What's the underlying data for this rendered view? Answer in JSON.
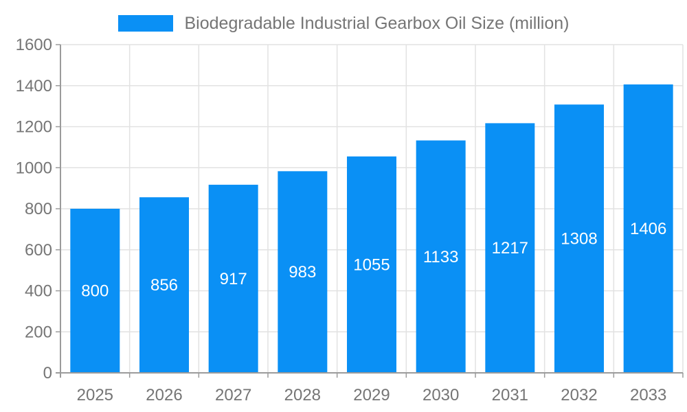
{
  "legend": {
    "swatch_color": "#0A90F5",
    "label": "Biodegradable Industrial Gearbox Oil Size (million)"
  },
  "chart_data": {
    "type": "bar",
    "title": "Biodegradable Industrial Gearbox Oil Size (million)",
    "categories": [
      "2025",
      "2026",
      "2027",
      "2028",
      "2029",
      "2030",
      "2031",
      "2032",
      "2033"
    ],
    "values": [
      800,
      856,
      917,
      983,
      1055,
      1133,
      1217,
      1308,
      1406
    ],
    "xlabel": "",
    "ylabel": "",
    "ylim": [
      0,
      1600
    ],
    "ytick_step": 200,
    "ytick_labels": [
      "0",
      "200",
      "400",
      "600",
      "800",
      "1000",
      "1200",
      "1400",
      "1600"
    ],
    "grid": true,
    "legend_position": "top",
    "data_labels": "inside-center"
  },
  "colors": {
    "bar": "#0A90F5",
    "grid": "#E2E2E2",
    "axis": "#9B9B9B",
    "tick_text": "#757575",
    "bar_label_text": "#FFFFFF",
    "background": "#FFFFFF"
  }
}
